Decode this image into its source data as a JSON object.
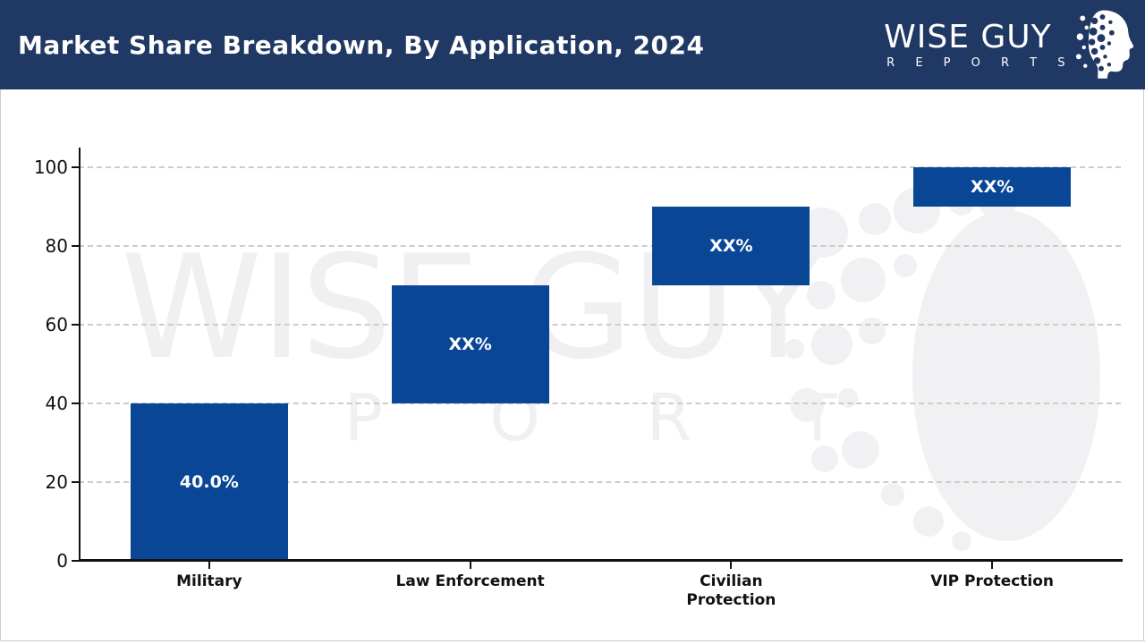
{
  "header": {
    "title": "Market Share Breakdown, By Application, 2024",
    "logo": {
      "line1": "WISE GUY",
      "line2": "R E P O R T S"
    }
  },
  "watermark": {
    "line1": "WISE GUY",
    "line2": "P O R T S"
  },
  "colors": {
    "header_bg": "#203864",
    "bar": "#0a4696",
    "grid": "#cccccc",
    "axis": "#111111",
    "watermark": "#f0f0f2",
    "bar_label": "#ffffff",
    "title_text": "#ffffff"
  },
  "chart_data": {
    "type": "bar",
    "subtype": "waterfall",
    "title": "Market Share Breakdown, By Application, 2024",
    "categories": [
      "Military",
      "Law Enforcement",
      "Civilian Protection",
      "VIP Protection"
    ],
    "segments": [
      {
        "category": "Military",
        "start": 0,
        "end": 40,
        "label": "40.0%"
      },
      {
        "category": "Law Enforcement",
        "start": 40,
        "end": 70,
        "label": "XX%"
      },
      {
        "category": "Civilian Protection",
        "start": 70,
        "end": 90,
        "label": "XX%"
      },
      {
        "category": "VIP Protection",
        "start": 90,
        "end": 100,
        "label": "XX%"
      }
    ],
    "yticks": [
      0,
      20,
      40,
      60,
      80,
      100
    ],
    "ylim": [
      0,
      104
    ],
    "xlabel": "",
    "ylabel": "",
    "grid": "horizontal-dashed",
    "legend": "none"
  }
}
